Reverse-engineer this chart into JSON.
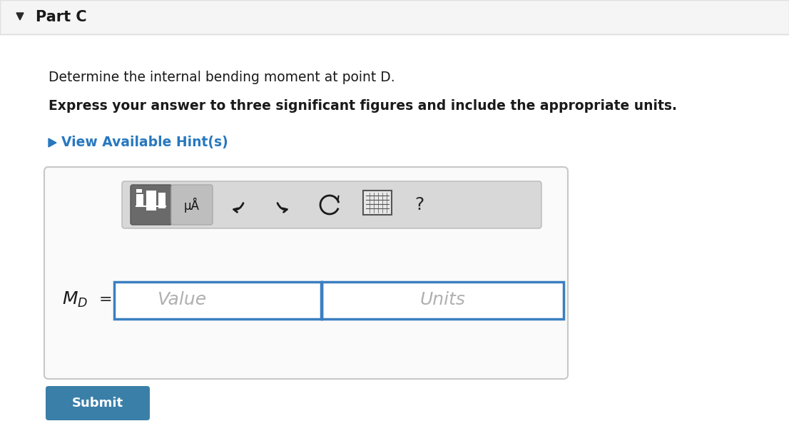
{
  "background_color": "#ffffff",
  "header_bg_color": "#f5f5f5",
  "header_text": "Part C",
  "header_text_color": "#1a1a1a",
  "arrow_color": "#2a2a2a",
  "line1_normal": "Determine the internal bending moment at point ",
  "line1_italic": "D",
  "line1_suffix": ".",
  "line2": "Express your answer to three significant figures and include the appropriate units.",
  "hint_text": "View Available Hint(s)",
  "hint_color": "#2878be",
  "hint_arrow_color": "#2878be",
  "input_box_color": "#3a7fc1",
  "value_placeholder": "Value",
  "units_placeholder": "Units",
  "placeholder_color": "#b0b0b0",
  "submit_bg": "#3a7fa8",
  "submit_text": "Submit",
  "submit_text_color": "#ffffff",
  "toolbar_bg": "#d8d8d8",
  "toolbar_box_bg": "#7a7a7a",
  "toolbar_mu_bg": "#bebebe",
  "outer_box_edge": "#c8c8c8",
  "outer_box_face": "#fafafa"
}
